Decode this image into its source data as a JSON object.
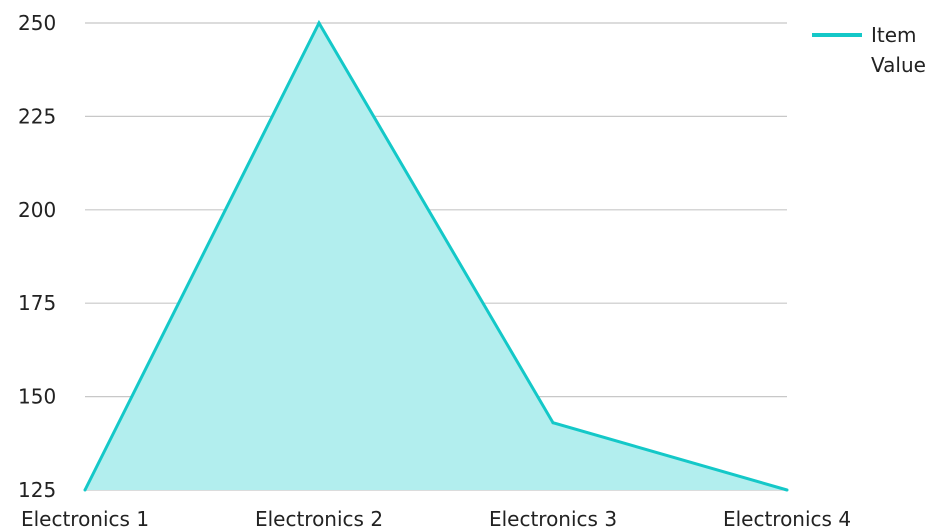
{
  "chart_data": {
    "type": "area",
    "title": "",
    "xlabel": "",
    "ylabel": "",
    "categories": [
      "Electronics 1",
      "Electronics 2",
      "Electronics 3",
      "Electronics 4"
    ],
    "series": [
      {
        "name": "Item Value",
        "values": [
          125,
          250,
          143,
          125
        ]
      }
    ],
    "ylim": [
      125,
      250
    ],
    "yticks": [
      "125",
      "150",
      "175",
      "200",
      "225",
      "250"
    ],
    "grid": true,
    "legend": {
      "placement": "top-right",
      "lines": [
        "Item",
        "Value"
      ]
    },
    "colors": {
      "line": "#14c8c8",
      "fill": "#b2eeee",
      "grid": "#c8c8c8",
      "text": "#222222"
    }
  }
}
